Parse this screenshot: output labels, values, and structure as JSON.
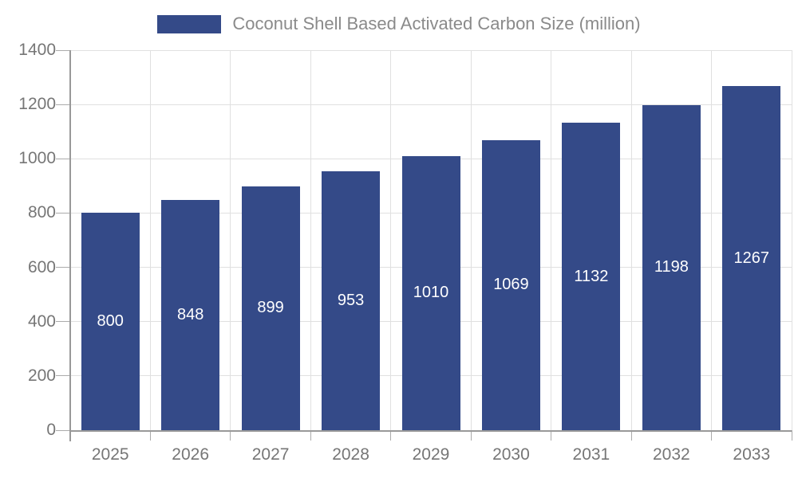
{
  "legend": {
    "label": "Coconut Shell Based Activated Carbon Size (million)"
  },
  "colors": {
    "bar": "#344a88",
    "grid": "#e0e0e0",
    "axis": "#999999",
    "tick": "#ababab",
    "tick_label": "#767676",
    "legend_text": "#8a8a8a",
    "value_label": "#ffffff",
    "background": "#ffffff"
  },
  "chart_data": {
    "type": "bar",
    "title": "Coconut Shell Based Activated Carbon Size (million)",
    "categories": [
      "2025",
      "2026",
      "2027",
      "2028",
      "2029",
      "2030",
      "2031",
      "2032",
      "2033"
    ],
    "values": [
      800,
      848,
      899,
      953,
      1010,
      1069,
      1132,
      1198,
      1267
    ],
    "xlabel": "",
    "ylabel": "",
    "ylim": [
      0,
      1400
    ],
    "ytick_interval": 200,
    "grid": true,
    "legend_position": "top",
    "value_labels": "inside-center"
  }
}
